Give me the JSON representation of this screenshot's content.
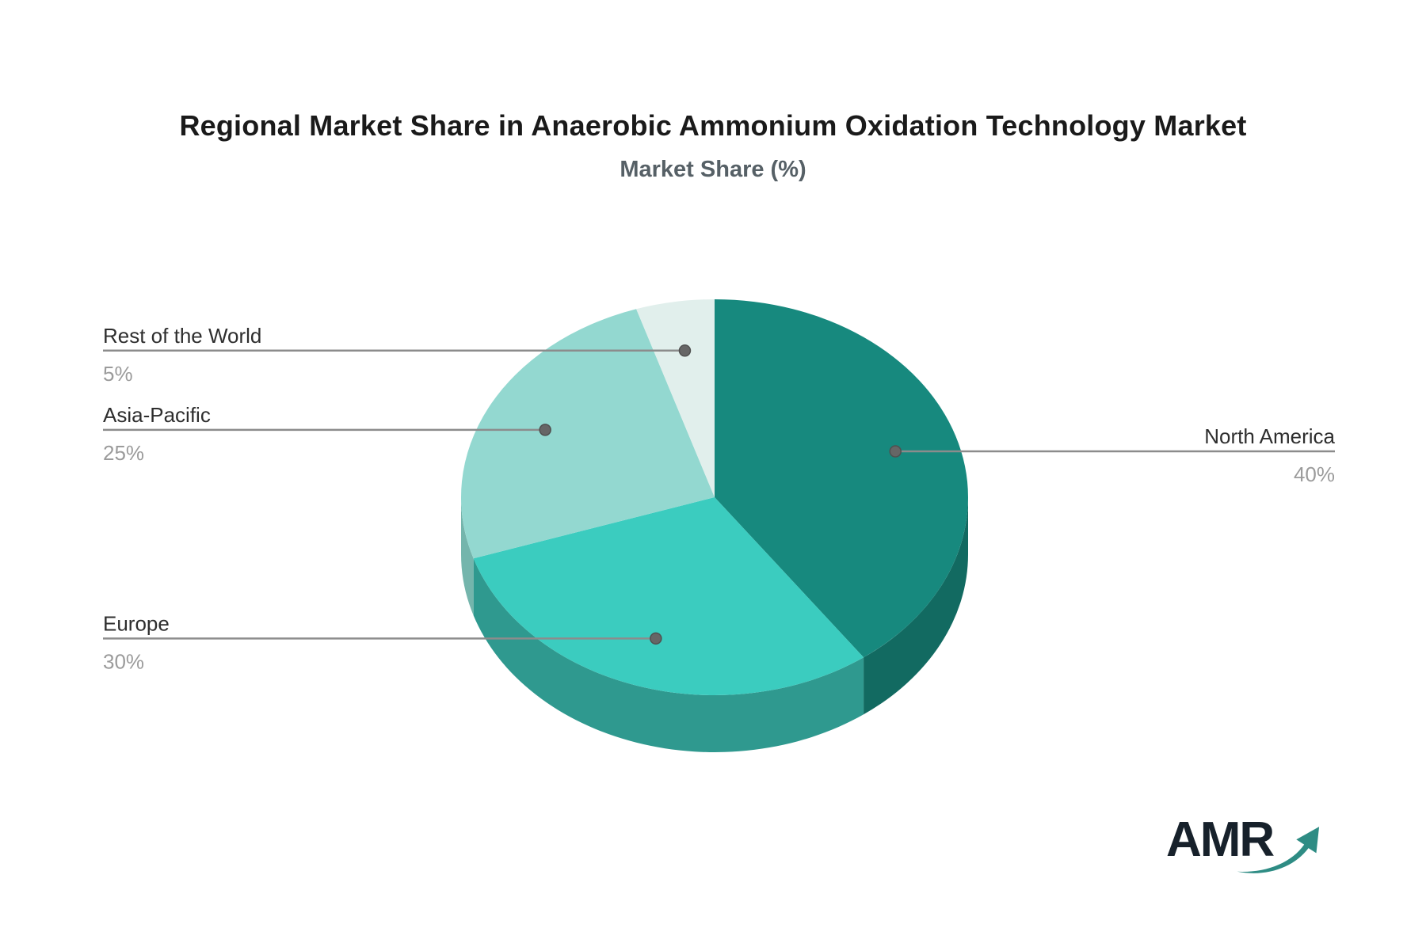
{
  "header": {
    "title": "Regional Market Share in Anaerobic Ammonium Oxidation Technology Market",
    "subtitle": "Market Share (%)"
  },
  "chart_data": {
    "type": "pie",
    "title": "Regional Market Share in Anaerobic Ammonium Oxidation Technology Market",
    "subtitle": "Market Share (%)",
    "unit": "%",
    "style_3d": true,
    "start_angle_deg": 0,
    "clockwise": true,
    "legend_position": "none",
    "labels": "callout-leader-lines-with-dots",
    "segments": [
      {
        "label": "North America",
        "value": 40,
        "display_value": "40%",
        "color": "#17897E",
        "depth_color": "#126A61",
        "callout_side": "right"
      },
      {
        "label": "Europe",
        "value": 30,
        "display_value": "30%",
        "color": "#3BCCBF",
        "depth_color": "#2F998F",
        "callout_side": "left"
      },
      {
        "label": "Asia-Pacific",
        "value": 25,
        "display_value": "25%",
        "color": "#93D8D0",
        "depth_color": "#74B5AC",
        "callout_side": "left"
      },
      {
        "label": "Rest of the World",
        "value": 5,
        "display_value": "5%",
        "color": "#E1EFEC",
        "depth_color": "#BFD8D3",
        "callout_side": "left"
      }
    ]
  },
  "logo": {
    "text": "AMR",
    "text_color": "#17212B",
    "arrow_color": "#2E8C84"
  },
  "palette": {
    "background": "#FFFFFF",
    "title_text": "#1A1A1A",
    "subtitle_text": "#566066",
    "label_text": "#2E2E2E",
    "value_text": "#9B9B9B",
    "leader_line": "#8C8C8C",
    "leader_dot": "#666666"
  }
}
